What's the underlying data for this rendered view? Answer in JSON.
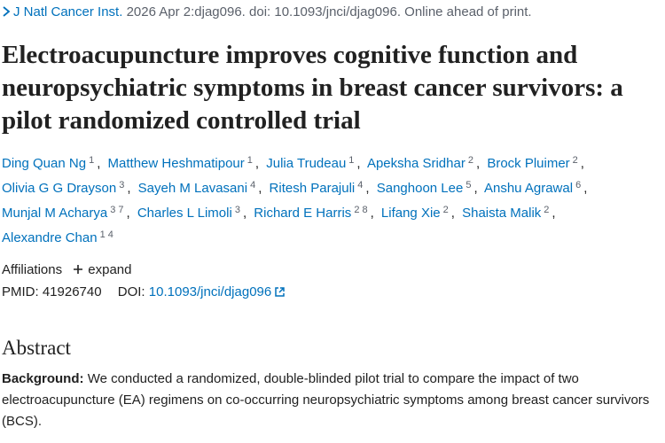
{
  "citation": {
    "journal": "J Natl Cancer Inst.",
    "details": "2026 Apr 2:djag096. doi: 10.1093/jnci/djag096. Online ahead of print."
  },
  "title": "Electroacupuncture improves cognitive function and neuropsychiatric symptoms in breast cancer survivors: a pilot randomized controlled trial",
  "authors": [
    {
      "name": "Ding Quan Ng",
      "affiliations": [
        "1"
      ]
    },
    {
      "name": "Matthew Heshmatipour",
      "affiliations": [
        "1"
      ]
    },
    {
      "name": "Julia Trudeau",
      "affiliations": [
        "1"
      ]
    },
    {
      "name": "Apeksha Sridhar",
      "affiliations": [
        "2"
      ]
    },
    {
      "name": "Brock Pluimer",
      "affiliations": [
        "2"
      ]
    },
    {
      "name": "Olivia G G Drayson",
      "affiliations": [
        "3"
      ]
    },
    {
      "name": "Sayeh M Lavasani",
      "affiliations": [
        "4"
      ]
    },
    {
      "name": "Ritesh Parajuli",
      "affiliations": [
        "4"
      ]
    },
    {
      "name": "Sanghoon Lee",
      "affiliations": [
        "5"
      ]
    },
    {
      "name": "Anshu Agrawal",
      "affiliations": [
        "6"
      ]
    },
    {
      "name": "Munjal M Acharya",
      "affiliations": [
        "3",
        "7"
      ]
    },
    {
      "name": "Charles L Limoli",
      "affiliations": [
        "3"
      ]
    },
    {
      "name": "Richard E Harris",
      "affiliations": [
        "2",
        "8"
      ]
    },
    {
      "name": "Lifang Xie",
      "affiliations": [
        "2"
      ]
    },
    {
      "name": "Shaista Malik",
      "affiliations": [
        "2"
      ]
    },
    {
      "name": "Alexandre Chan",
      "affiliations": [
        "1",
        "4"
      ]
    }
  ],
  "affiliations": {
    "label": "Affiliations",
    "toggle": "expand"
  },
  "identifiers": {
    "pmid_label": "PMID:",
    "pmid": "41926740",
    "doi_label": "DOI:",
    "doi": "10.1093/jnci/djag096"
  },
  "abstract": {
    "heading": "Abstract",
    "background_label": "Background:",
    "background_text": "We conducted a randomized, double-blinded pilot trial to compare the impact of two electroacupuncture (EA) regimens on co-occurring neuropsychiatric symptoms among breast cancer survivors (BCS)."
  }
}
